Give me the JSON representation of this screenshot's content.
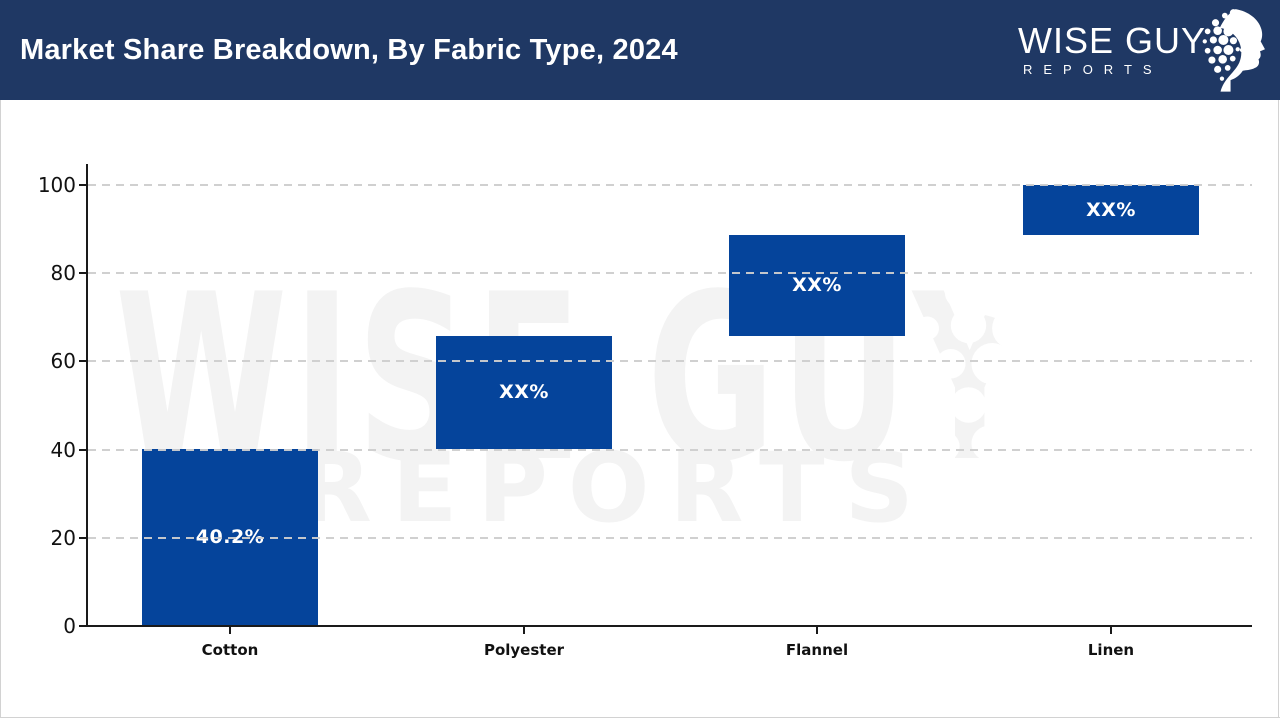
{
  "header": {
    "title": "Market Share Breakdown, By Fabric Type, 2024",
    "logo": {
      "line1": "WISE GUY",
      "line2": "REPORTS"
    }
  },
  "watermark": {
    "line1": "WISE GUY",
    "line2": "REPORTS"
  },
  "chart_data": {
    "type": "bar",
    "subtype": "waterfall-floating-segments",
    "title": "Market Share Breakdown, By Fabric Type, 2024",
    "categories": [
      "Cotton",
      "Polyester",
      "Flannel",
      "Linen"
    ],
    "segments": [
      {
        "category": "Cotton",
        "start": 0,
        "end": 40.2,
        "label": "40.2%"
      },
      {
        "category": "Polyester",
        "start": 40.2,
        "end": 65.8,
        "label": "XX%"
      },
      {
        "category": "Flannel",
        "start": 65.8,
        "end": 88.7,
        "label": "XX%"
      },
      {
        "category": "Linen",
        "start": 88.7,
        "end": 100,
        "label": "XX%"
      }
    ],
    "xlabel": "",
    "ylabel": "",
    "yticks": [
      0,
      20,
      40,
      60,
      80,
      100
    ],
    "ylim": [
      0,
      105
    ],
    "grid": "horizontal dashed, drawn over bars",
    "legend": "none"
  },
  "colors": {
    "header_bg": "#1f3864",
    "bar": "#05449b",
    "bar_label": "#ffffff",
    "axis": "#1a1a1a",
    "gridline": "#d0d0d0",
    "watermark": "#f3f3f3",
    "border": "#d2d2d2"
  }
}
